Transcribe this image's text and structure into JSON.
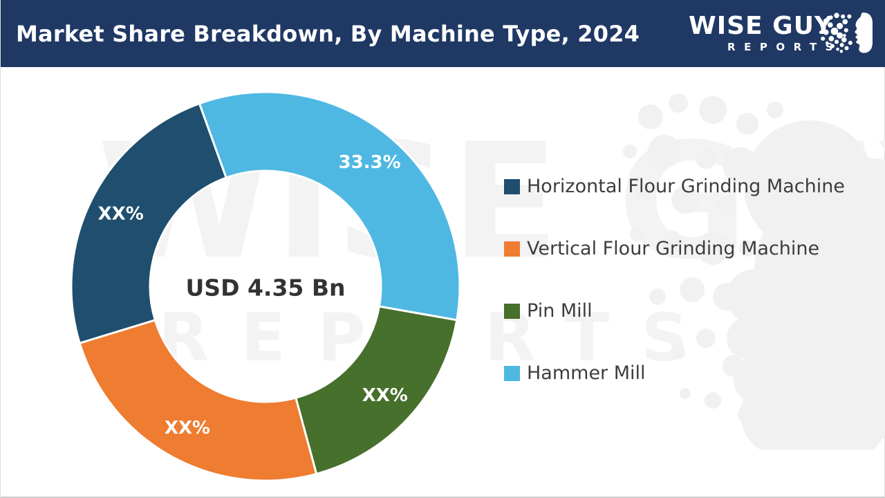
{
  "header": {
    "title": "Market Share Breakdown, By Machine Type, 2024",
    "background": "#1F3864",
    "logo": {
      "line1": "WISE GUY",
      "line2": "REPORTS"
    }
  },
  "watermark": {
    "line1": "WISE GUY",
    "line2": "REPORTS",
    "color": "#f3f3f3"
  },
  "chart_data": {
    "type": "pie",
    "donut": true,
    "title": "Market Share Breakdown, By Machine Type, 2024",
    "center_text": "USD 4.35 Bn",
    "legend_position": "right",
    "start_angle_deg": 253,
    "draw_order": [
      0,
      3,
      2,
      1
    ],
    "segments": [
      {
        "name": "Horizontal Flour Grinding Machine",
        "label": "XX%",
        "share_pct": 24.2,
        "color": "#1F4E6E"
      },
      {
        "name": "Vertical Flour Grinding Machine",
        "label": "XX%",
        "share_pct": 24.5,
        "color": "#EE7C31"
      },
      {
        "name": "Pin Mill",
        "label": "XX%",
        "share_pct": 18.0,
        "color": "#46702B"
      },
      {
        "name": "Hammer Mill",
        "label": "33.3%",
        "share_pct": 33.3,
        "color": "#4FB8E2"
      }
    ]
  },
  "colors": {
    "header_background": "#1F3864",
    "center_text": "#333333",
    "slice_label": "#ffffff",
    "legend_text": "#3d3d3d",
    "watermark": "#f3f3f3"
  }
}
